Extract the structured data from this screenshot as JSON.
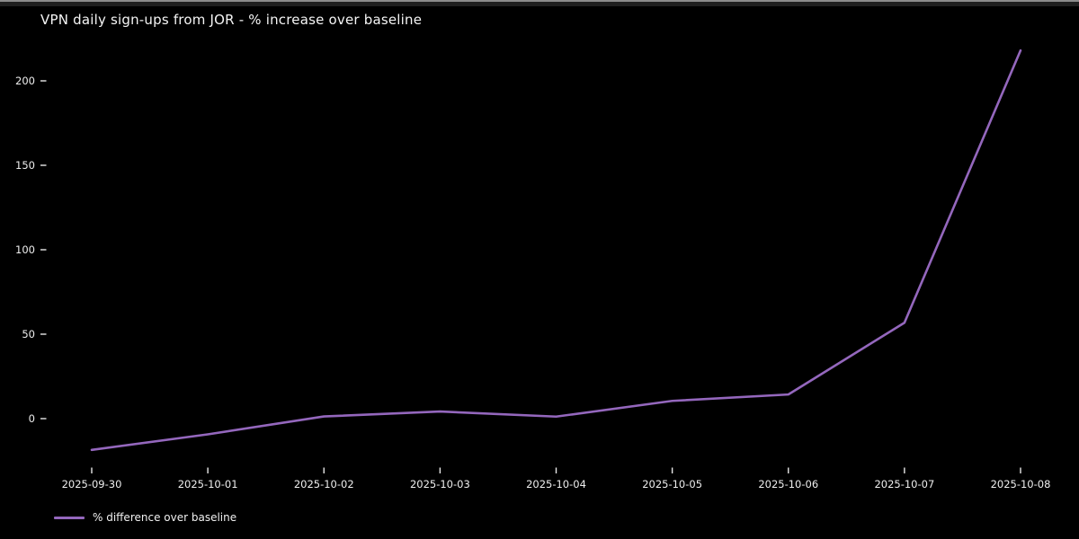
{
  "window": {
    "background": "#000000",
    "top_edge_highlight": "#8c8c8c",
    "top_edge_shade": "#1f1f1f"
  },
  "chart_data": {
    "type": "line",
    "title": "VPN daily sign-ups from JOR - % increase over baseline",
    "x": [
      "2025-09-30",
      "2025-10-01",
      "2025-10-02",
      "2025-10-03",
      "2025-10-04",
      "2025-10-05",
      "2025-10-06",
      "2025-10-07",
      "2025-10-08"
    ],
    "series": [
      {
        "name": "% difference over baseline",
        "color": "#9467bd",
        "values": [
          -18.5,
          -9.3,
          1.3,
          4.2,
          1.2,
          10.5,
          14.3,
          56.8,
          218.0
        ]
      }
    ],
    "xlabel": "",
    "ylabel": "",
    "yticks": [
      0,
      50,
      100,
      150,
      200
    ],
    "ylim": [
      -30,
      228
    ],
    "grid": false,
    "legend": {
      "label": "% difference over baseline",
      "position": "lower-left"
    },
    "colors": {
      "background": "#000000",
      "text": "#f2f2f2",
      "tick_mark": "#e8e8e8"
    }
  }
}
